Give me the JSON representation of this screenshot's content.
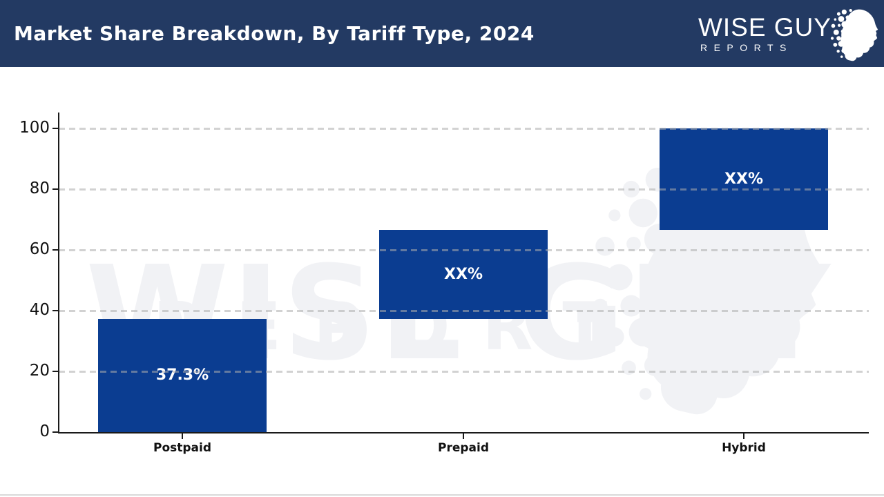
{
  "header": {
    "title": "Market Share Breakdown, By Tariff Type, 2024",
    "logo": {
      "line1": "WISE GUY",
      "line2": "REPORTS"
    }
  },
  "watermark": {
    "line1": "WISE GUY",
    "line2": "REPORTS"
  },
  "colors": {
    "header_bg": "#233a63",
    "bar": "#0b3d91",
    "bar_label": "#ffffff",
    "watermark": "#f1f2f5",
    "axis": "#1a1a1a"
  },
  "chart_data": {
    "type": "bar",
    "subtype": "waterfall",
    "title": "Market Share Breakdown, By Tariff Type, 2024",
    "categories": [
      "Postpaid",
      "Prepaid",
      "Hybrid"
    ],
    "segments": [
      {
        "category": "Postpaid",
        "start": 0,
        "end": 37.3,
        "label": "37.3%"
      },
      {
        "category": "Prepaid",
        "start": 37.3,
        "end": 66.5,
        "label": "XX%"
      },
      {
        "category": "Hybrid",
        "start": 66.5,
        "end": 100,
        "label": "XX%"
      }
    ],
    "xlabel": "",
    "ylabel": "",
    "yticks": [
      0,
      20,
      40,
      60,
      80,
      100
    ],
    "ylim": [
      0,
      105
    ],
    "grid": "horizontal-dashed",
    "legend": "none"
  }
}
